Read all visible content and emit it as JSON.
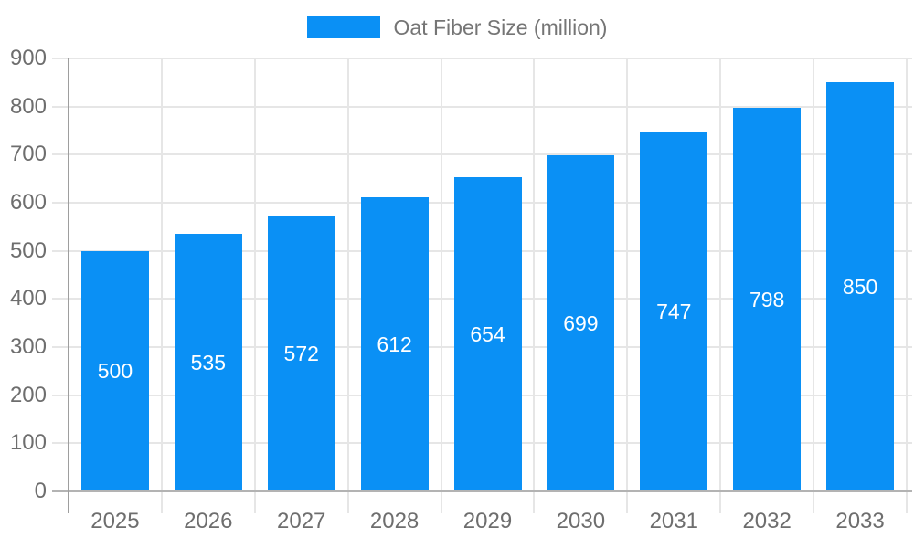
{
  "chart": {
    "legend_label": "Oat Fiber Size (million)"
  },
  "chart_data": {
    "type": "bar",
    "title": "Oat Fiber Size (million)",
    "categories": [
      "2025",
      "2026",
      "2027",
      "2028",
      "2029",
      "2030",
      "2031",
      "2032",
      "2033"
    ],
    "values": [
      500,
      535,
      572,
      612,
      654,
      699,
      747,
      798,
      850
    ],
    "series": [
      {
        "name": "Oat Fiber Size (million)",
        "values": [
          500,
          535,
          572,
          612,
          654,
          699,
          747,
          798,
          850
        ]
      }
    ],
    "xlabel": "",
    "ylabel": "",
    "ylim": [
      0,
      900
    ],
    "ytick_step": 100,
    "yticks": [
      0,
      100,
      200,
      300,
      400,
      500,
      600,
      700,
      800,
      900
    ],
    "grid": true,
    "legend_position": "top-center",
    "value_label_position": "inside-center",
    "colors": {
      "bar": "#0a90f5",
      "value_label": "#ffffff",
      "axis_label": "#6e6e6e",
      "legend_text": "#757575",
      "gridline": "#e6e6e6",
      "y_axis_line": "#9e9e9e",
      "x_axis_line": "#b3b3b3",
      "background": "#ffffff"
    }
  }
}
